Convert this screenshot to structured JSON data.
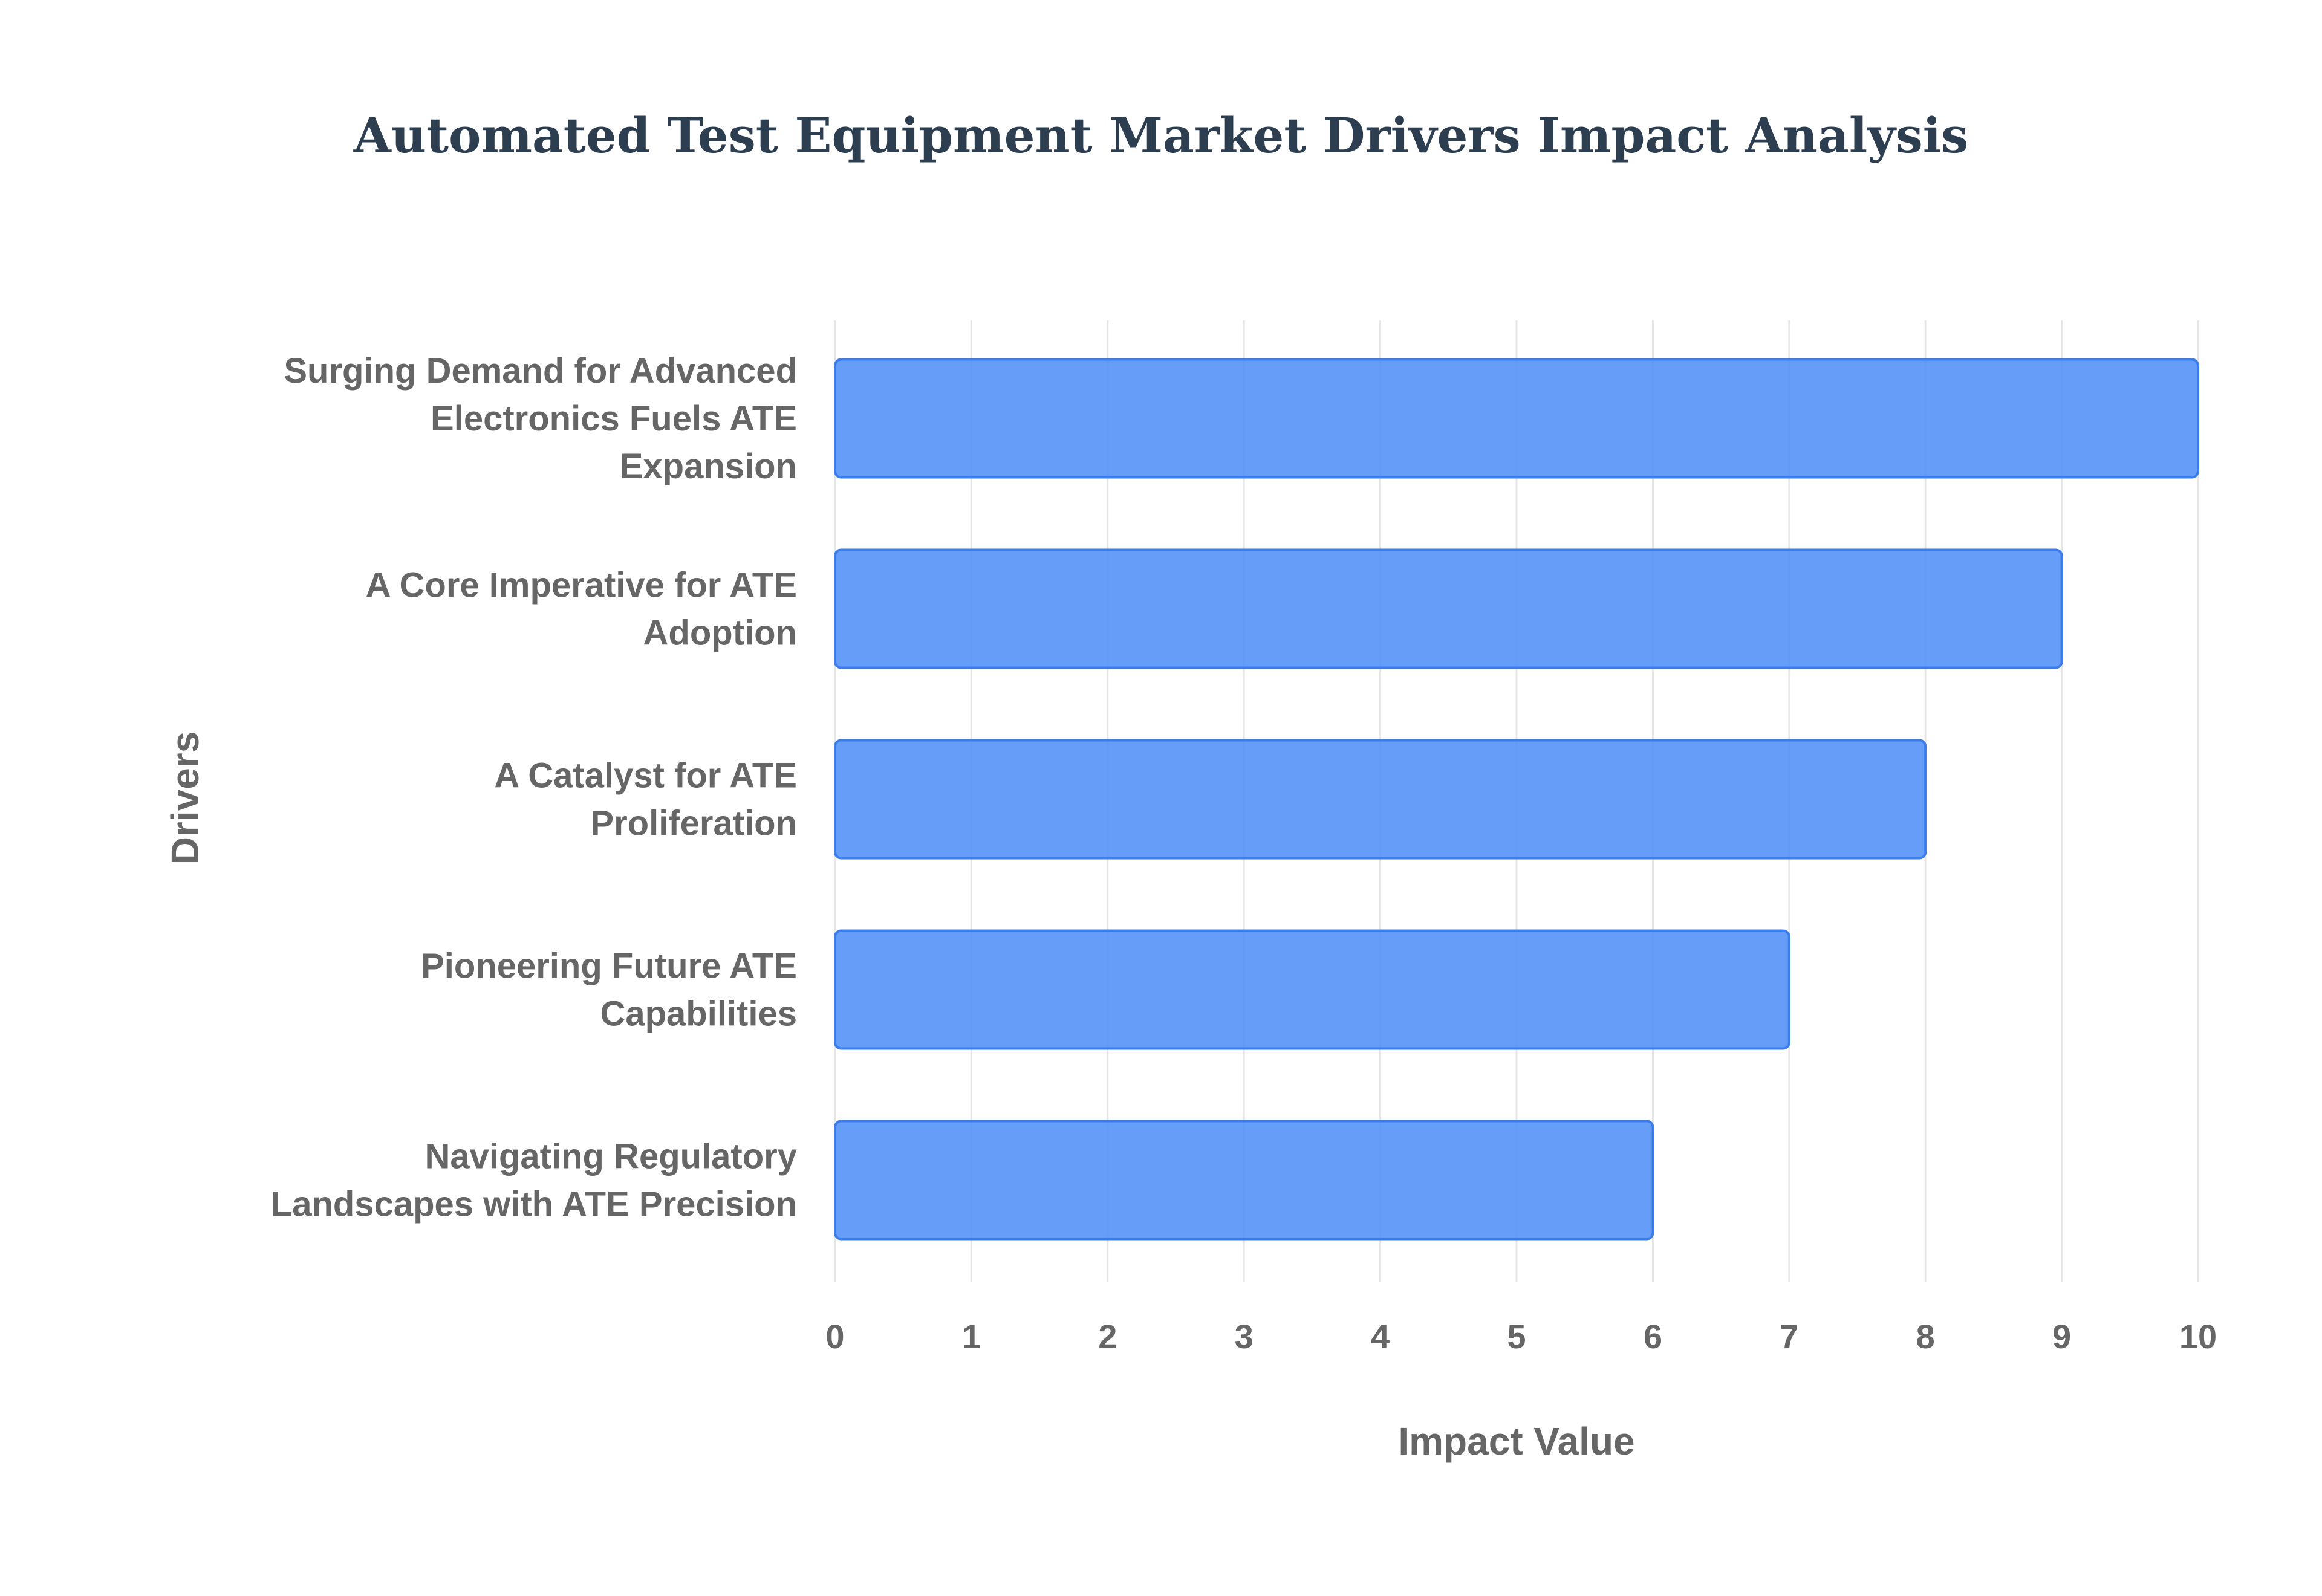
{
  "chart_data": {
    "type": "bar",
    "orientation": "horizontal",
    "title": "Automated Test Equipment Market Drivers Impact Analysis",
    "xlabel": "Impact Value",
    "ylabel": "Drivers",
    "xlim": [
      0,
      10
    ],
    "xticks": [
      "0",
      "1",
      "2",
      "3",
      "4",
      "5",
      "6",
      "7",
      "8",
      "9",
      "10"
    ],
    "grid": true,
    "bar_color": "#4a8cf7",
    "categories": [
      [
        "Surging Demand for Advanced",
        "Electronics Fuels ATE",
        "Expansion"
      ],
      [
        "A Core Imperative for ATE",
        "Adoption"
      ],
      [
        "A Catalyst for ATE",
        "Proliferation"
      ],
      [
        "Pioneering Future ATE",
        "Capabilities"
      ],
      [
        "Navigating Regulatory",
        "Landscapes with ATE Precision"
      ]
    ],
    "values": [
      10,
      9,
      8,
      7,
      6
    ]
  }
}
